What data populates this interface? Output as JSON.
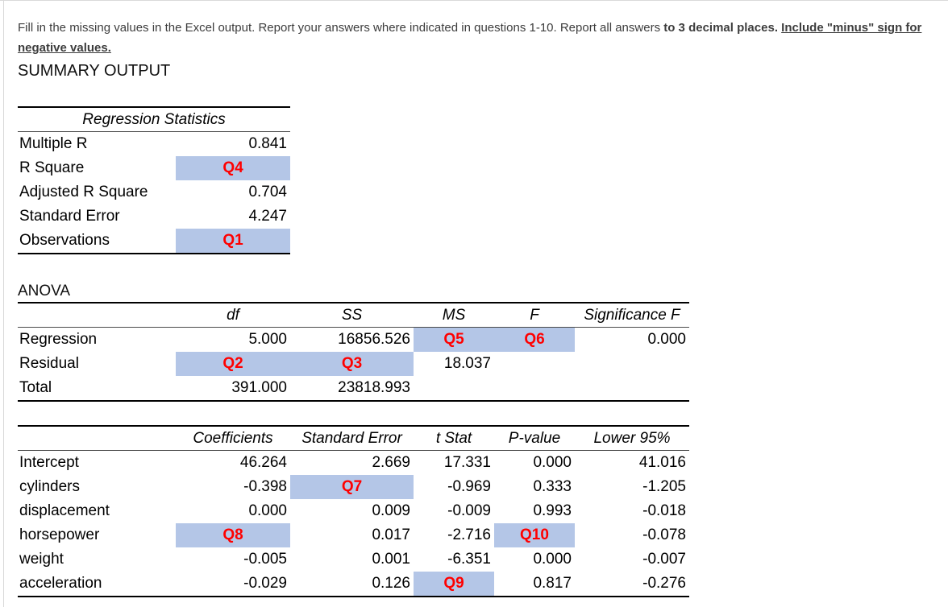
{
  "colors": {
    "highlight_fill": "#b4c6e7",
    "question_text": "#ff0000"
  },
  "instructions": {
    "segment_normal": "Fill in the missing values in the Excel output. Report your answers where indicated in questions 1-10. Report all answers ",
    "segment_bold": "to 3 decimal places",
    "segment_after_bold": ". ",
    "segment_bold_underline": "Include \"minus\" sign for negative values."
  },
  "summary": {
    "title": "SUMMARY OUTPUT",
    "table_header": "Regression Statistics",
    "rows": [
      {
        "label": "Multiple R",
        "value": "0.841",
        "highlighted": false
      },
      {
        "label": "R Square",
        "value": "Q4",
        "highlighted": true
      },
      {
        "label": "Adjusted R Square",
        "value": "0.704",
        "highlighted": false
      },
      {
        "label": "Standard Error",
        "value": "4.247",
        "highlighted": false
      },
      {
        "label": "Observations",
        "value": "Q1",
        "highlighted": true
      }
    ]
  },
  "anova": {
    "title": "ANOVA",
    "headers": [
      "df",
      "SS",
      "MS",
      "F",
      "Significance F"
    ],
    "rows": [
      {
        "label": "Regression",
        "df": "5.000",
        "ss": "16856.526",
        "ms": "Q5",
        "f": "Q6",
        "sig_f": "0.000"
      },
      {
        "label": "Residual",
        "df": "Q2",
        "ss": "Q3",
        "ms": "18.037",
        "f": "",
        "sig_f": ""
      },
      {
        "label": "Total",
        "df": "391.000",
        "ss": "23818.993",
        "ms": "",
        "f": "",
        "sig_f": ""
      }
    ]
  },
  "coefficients": {
    "headers": [
      "Coefficients",
      "Standard Error",
      "t Stat",
      "P-value",
      "Lower 95%"
    ],
    "rows": [
      {
        "label": "Intercept",
        "coef": "46.264",
        "se": "2.669",
        "t_stat": "17.331",
        "p_value": "0.000",
        "lower_95": "41.016"
      },
      {
        "label": "cylinders",
        "coef": "-0.398",
        "se": "Q7",
        "t_stat": "-0.969",
        "p_value": "0.333",
        "lower_95": "-1.205"
      },
      {
        "label": "displacement",
        "coef": "0.000",
        "se": "0.009",
        "t_stat": "-0.009",
        "p_value": "0.993",
        "lower_95": "-0.018"
      },
      {
        "label": "horsepower",
        "coef": "Q8",
        "se": "0.017",
        "t_stat": "-2.716",
        "p_value": "Q10",
        "lower_95": "-0.078"
      },
      {
        "label": "weight",
        "coef": "-0.005",
        "se": "0.001",
        "t_stat": "-6.351",
        "p_value": "0.000",
        "lower_95": "-0.007"
      },
      {
        "label": "acceleration",
        "coef": "-0.029",
        "se": "0.126",
        "t_stat": "Q9",
        "p_value": "0.817",
        "lower_95": "-0.276"
      }
    ]
  }
}
